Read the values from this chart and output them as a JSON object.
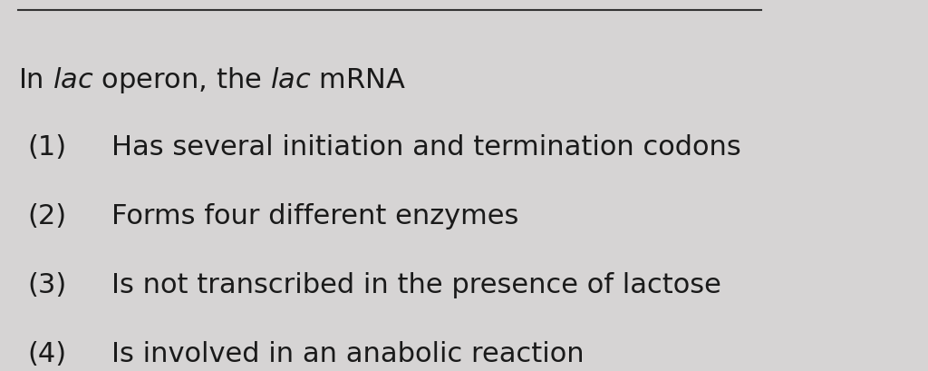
{
  "background_color": "#d6d4d4",
  "text_color": "#1a1a1a",
  "title_line": "In $\\it{lac}$ operon, the $\\it{lac}$ mRNA",
  "options": [
    {
      "num": "(1)",
      "text": "Has several initiation and termination codons"
    },
    {
      "num": "(2)",
      "text": "Forms four different enzymes"
    },
    {
      "num": "(3)",
      "text": "Is not transcribed in the presence of lactose"
    },
    {
      "num": "(4)",
      "text": "Is involved in an anabolic reaction"
    }
  ],
  "top_line_color": "#333333",
  "title_fontsize": 22,
  "option_fontsize": 22,
  "num_fontsize": 22,
  "fig_width": 10.24,
  "fig_height": 4.1,
  "dpi": 100
}
